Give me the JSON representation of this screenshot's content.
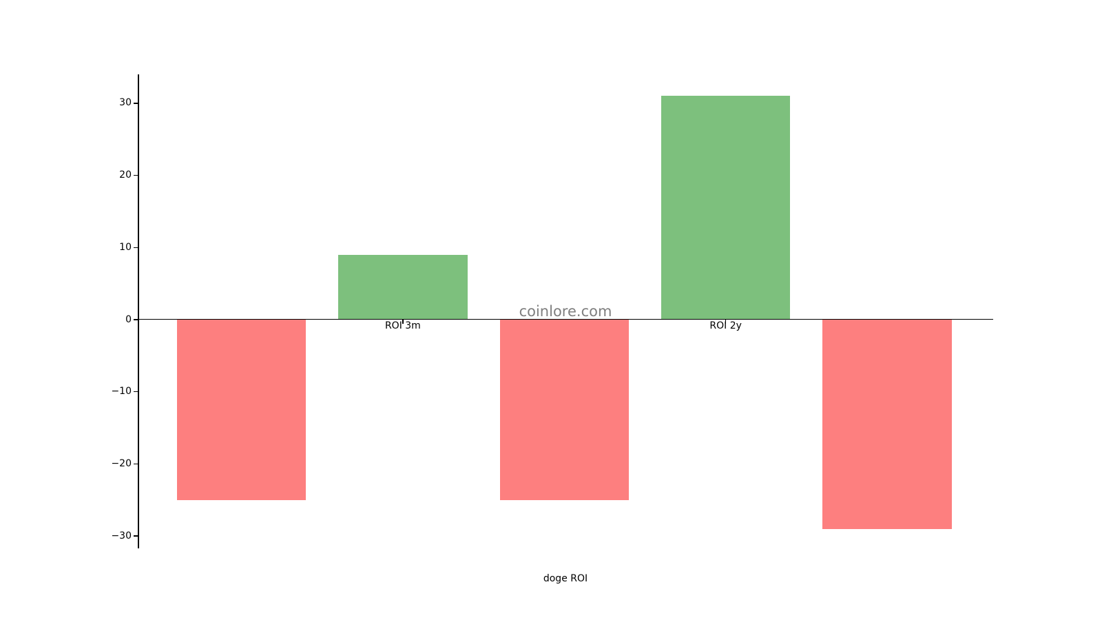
{
  "watermark": "coinlore.com",
  "chart_data": {
    "type": "bar",
    "categories": [
      "",
      "ROI 3m",
      "",
      "ROI 2y",
      ""
    ],
    "values": [
      -25,
      9,
      -25,
      31,
      -29
    ],
    "title": "",
    "xlabel": "doge ROI",
    "ylabel": "",
    "ylim": [
      -32,
      34
    ],
    "xlim": [
      -0.645,
      4.645
    ],
    "yticks": [
      30,
      20,
      10,
      0,
      -10,
      -20,
      -30
    ],
    "grid": false,
    "legend": "none",
    "colors": {
      "positive_bar": "#7dc07d",
      "negative_bar": "#fd7f7f",
      "axis": "#000000",
      "watermark_text": "#7f7f7f",
      "background": "#ffffff"
    }
  }
}
